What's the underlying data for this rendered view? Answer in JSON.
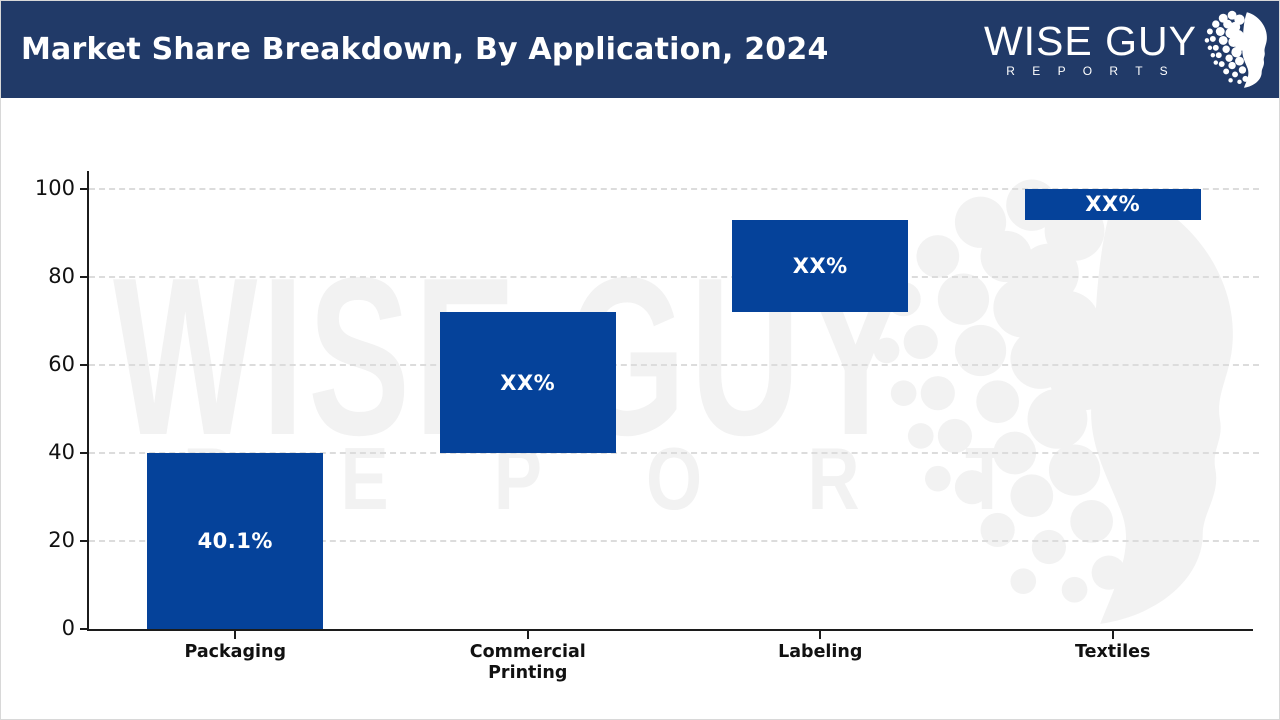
{
  "header": {
    "title": "Market Share Breakdown, By Application, 2024",
    "bg_color": "#213a68",
    "logo": {
      "line1": "WISE GUY",
      "line2": "R E P O R T S"
    }
  },
  "watermark": {
    "line1": "WISE GUY",
    "line2": "R E P O R T S"
  },
  "chart_data": {
    "type": "bar",
    "subtype": "waterfall",
    "title": "Market Share Breakdown, By Application, 2024",
    "categories": [
      "Packaging",
      "Commercial\nPrinting",
      "Labeling",
      "Textiles"
    ],
    "segments": [
      {
        "category": "Packaging",
        "start": 0,
        "end": 40,
        "label": "40.1%"
      },
      {
        "category": "Commercial Printing",
        "start": 40,
        "end": 72,
        "label": "XX%"
      },
      {
        "category": "Labeling",
        "start": 72,
        "end": 93,
        "label": "XX%"
      },
      {
        "category": "Textiles",
        "start": 93,
        "end": 100,
        "label": "XX%"
      }
    ],
    "ylim": [
      0,
      100
    ],
    "yticks": [
      0,
      20,
      40,
      60,
      80,
      100
    ],
    "grid": "horizontal-dashed",
    "legend": "none",
    "bar_color": "#05429a",
    "bar_label_color": "#ffffff",
    "axis_color": "#1c1c1c",
    "grid_color": "#dcdcdc",
    "watermark_color": "#f2f2f2"
  }
}
